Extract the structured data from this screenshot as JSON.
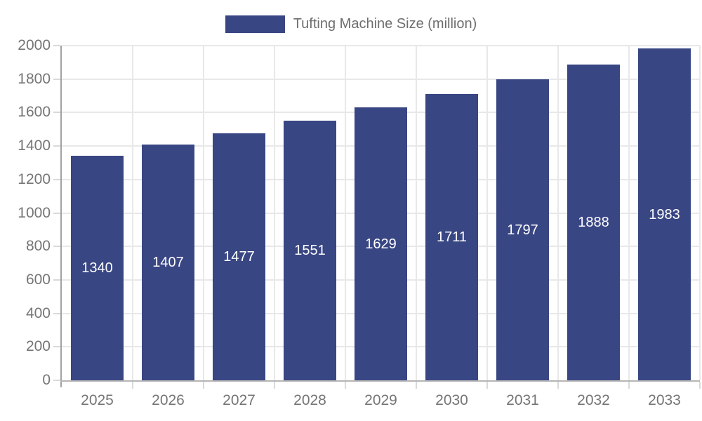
{
  "legend": {
    "label": "Tufting Machine Size (million)"
  },
  "chart_data": {
    "type": "bar",
    "title": "",
    "legend_entries": [
      "Tufting Machine Size (million)"
    ],
    "legend_position": "top-center",
    "categories": [
      "2025",
      "2026",
      "2027",
      "2028",
      "2029",
      "2030",
      "2031",
      "2032",
      "2033"
    ],
    "series": [
      {
        "name": "Tufting Machine Size (million)",
        "values": [
          1340,
          1407,
          1477,
          1551,
          1629,
          1711,
          1797,
          1888,
          1983
        ]
      }
    ],
    "value_labels": [
      "1340",
      "1407",
      "1477",
      "1551",
      "1629",
      "1711",
      "1797",
      "1888",
      "1983"
    ],
    "value_label_position": "inside-center",
    "xlabel": "",
    "ylabel": "",
    "ylim": [
      0,
      2000
    ],
    "ytick_step": 200,
    "ytick_labels": [
      "0",
      "200",
      "400",
      "600",
      "800",
      "1000",
      "1200",
      "1400",
      "1600",
      "1800",
      "2000"
    ],
    "grid": true,
    "colors": {
      "bar_fill": "#394684",
      "gridline": "#e8e8e8",
      "axis_line": "#a2a2a2",
      "tick_label": "#757575",
      "legend_text": "#6e6e6e",
      "value_label": "#ffffff",
      "background": "#ffffff"
    }
  }
}
